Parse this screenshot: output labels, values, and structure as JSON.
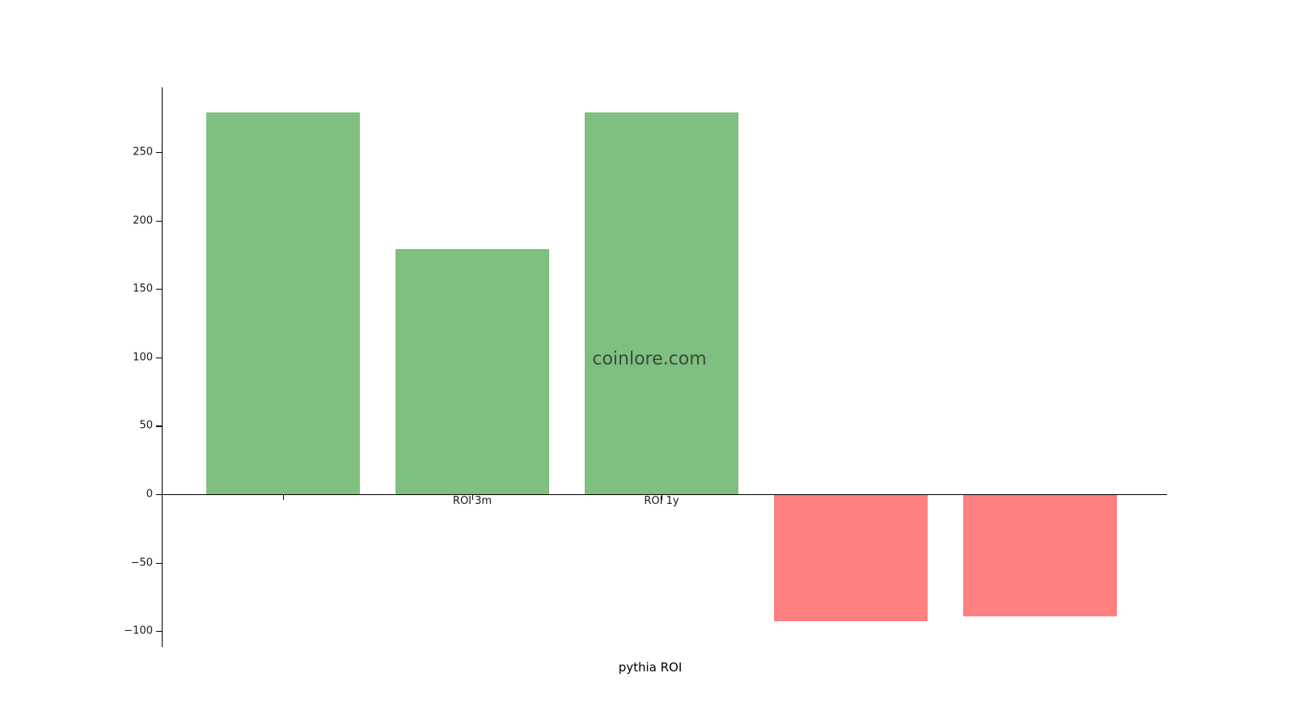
{
  "watermark": "coinlore.com",
  "chart_data": {
    "type": "bar",
    "title": "pythia ROI",
    "xlabel": "pythia ROI",
    "ylabel": "",
    "categories": [
      "",
      "ROI 3m",
      "ROI 1y",
      "",
      ""
    ],
    "values": [
      279,
      179,
      279,
      -93,
      -89
    ],
    "yticks": [
      250,
      200,
      150,
      100,
      50,
      0,
      -50,
      -100
    ],
    "ytick_labels": [
      "250",
      "200",
      "150",
      "100",
      "50",
      "0",
      "−50",
      "−100"
    ],
    "ylim": [
      -112,
      297
    ],
    "grid": false,
    "legend": "none",
    "colors": {
      "positive_bar": "#7fbf7f",
      "negative_bar": "#ff8080",
      "axis": "#000000",
      "tick_label": "#1a1a1a",
      "watermark": "#282828"
    }
  }
}
